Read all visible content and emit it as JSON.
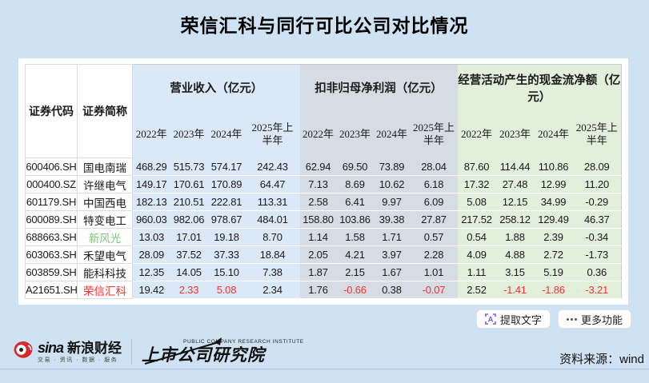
{
  "title": "荣信汇科与同行可比公司对比情况",
  "table": {
    "code_header": "证券代码",
    "name_header": "证券简称",
    "groups": [
      {
        "id": "revenue",
        "label": "营业收入（亿元）",
        "years": [
          "2022年",
          "2023年",
          "2024年",
          "2025年上半年"
        ],
        "bg": "#dbe8f7"
      },
      {
        "id": "profit",
        "label": "扣非归母净利润（亿元）",
        "years": [
          "2022年",
          "2023年",
          "2024年",
          "2025年上半年"
        ],
        "bg": "#d6dce4"
      },
      {
        "id": "cashflow",
        "label": "经营活动产生的现金流净额（亿元）",
        "years": [
          "2022年",
          "2023年",
          "2024年",
          "2025年上半年"
        ],
        "bg": "#e2efda"
      }
    ],
    "rows": [
      {
        "code": "600406.SH",
        "name": "国电南瑞",
        "name_color": "black",
        "revenue": [
          "468.29",
          "515.73",
          "574.17",
          "242.43"
        ],
        "profit": [
          "62.94",
          "69.50",
          "73.89",
          "28.04"
        ],
        "cashflow": [
          "87.60",
          "114.44",
          "110.86",
          "28.09"
        ],
        "red": {
          "revenue": [],
          "profit": [],
          "cashflow": []
        }
      },
      {
        "code": "000400.SZ",
        "name": "许继电气",
        "name_color": "black",
        "revenue": [
          "149.17",
          "170.61",
          "170.89",
          "64.47"
        ],
        "profit": [
          "7.13",
          "8.69",
          "10.62",
          "6.18"
        ],
        "cashflow": [
          "17.32",
          "27.48",
          "12.99",
          "11.20"
        ],
        "red": {
          "revenue": [],
          "profit": [],
          "cashflow": []
        }
      },
      {
        "code": "601179.SH",
        "name": "中国西电",
        "name_color": "black",
        "revenue": [
          "182.13",
          "210.51",
          "222.81",
          "113.31"
        ],
        "profit": [
          "2.58",
          "6.41",
          "9.97",
          "6.09"
        ],
        "cashflow": [
          "5.08",
          "12.15",
          "34.99",
          "-0.29"
        ],
        "red": {
          "revenue": [],
          "profit": [],
          "cashflow": []
        }
      },
      {
        "code": "600089.SH",
        "name": "特变电工",
        "name_color": "black",
        "revenue": [
          "960.03",
          "982.06",
          "978.67",
          "484.01"
        ],
        "profit": [
          "158.80",
          "103.86",
          "39.38",
          "27.87"
        ],
        "cashflow": [
          "217.52",
          "258.12",
          "129.49",
          "46.37"
        ],
        "red": {
          "revenue": [],
          "profit": [],
          "cashflow": []
        }
      },
      {
        "code": "688663.SH",
        "name": "新风光",
        "name_color": "green",
        "revenue": [
          "13.03",
          "17.01",
          "19.18",
          "8.70"
        ],
        "profit": [
          "1.14",
          "1.58",
          "1.71",
          "0.57"
        ],
        "cashflow": [
          "0.54",
          "1.88",
          "2.39",
          "-0.34"
        ],
        "red": {
          "revenue": [],
          "profit": [],
          "cashflow": []
        }
      },
      {
        "code": "603063.SH",
        "name": "禾望电气",
        "name_color": "black",
        "revenue": [
          "28.09",
          "37.52",
          "37.33",
          "18.84"
        ],
        "profit": [
          "2.05",
          "4.21",
          "3.97",
          "2.28"
        ],
        "cashflow": [
          "4.09",
          "4.88",
          "2.72",
          "-1.73"
        ],
        "red": {
          "revenue": [],
          "profit": [],
          "cashflow": []
        }
      },
      {
        "code": "603859.SH",
        "name": "能科科技",
        "name_color": "black",
        "revenue": [
          "12.35",
          "14.05",
          "15.10",
          "7.38"
        ],
        "profit": [
          "1.87",
          "2.15",
          "1.67",
          "1.01"
        ],
        "cashflow": [
          "1.11",
          "3.15",
          "5.19",
          "0.36"
        ],
        "red": {
          "revenue": [],
          "profit": [],
          "cashflow": []
        }
      },
      {
        "code": "A21651.SH",
        "name": "荣信汇科",
        "name_color": "red",
        "revenue": [
          "19.42",
          "2.33",
          "5.08",
          "2.34"
        ],
        "profit": [
          "1.76",
          "-0.66",
          "0.38",
          "-0.07"
        ],
        "cashflow": [
          "2.52",
          "-1.41",
          "-1.86",
          "-3.21"
        ],
        "red": {
          "revenue": [
            1,
            2
          ],
          "profit": [
            1,
            3
          ],
          "cashflow": [
            1,
            2,
            3
          ]
        }
      }
    ]
  },
  "buttons": {
    "extract_text": "提取文字",
    "more_features": "更多功能"
  },
  "footer": {
    "source": "资料来源：wind",
    "sina": {
      "latin": "sina",
      "cn": "新浪财经",
      "tagline": "交易 · 资讯 · 数据 · 服务"
    },
    "institute": {
      "en": "PUBLIC COMPANY RESEARCH INSTITUTE",
      "cn": "上市公司研究院"
    }
  },
  "colors": {
    "page_bg": "#cfe2f3",
    "rev_bg": "#dbe8f7",
    "prof_bg": "#d6dce4",
    "cash_bg": "#e2efda",
    "red_text": "#fe2d2d",
    "green_text": "#7cc57c",
    "accent_purple": "#7a5af8"
  }
}
